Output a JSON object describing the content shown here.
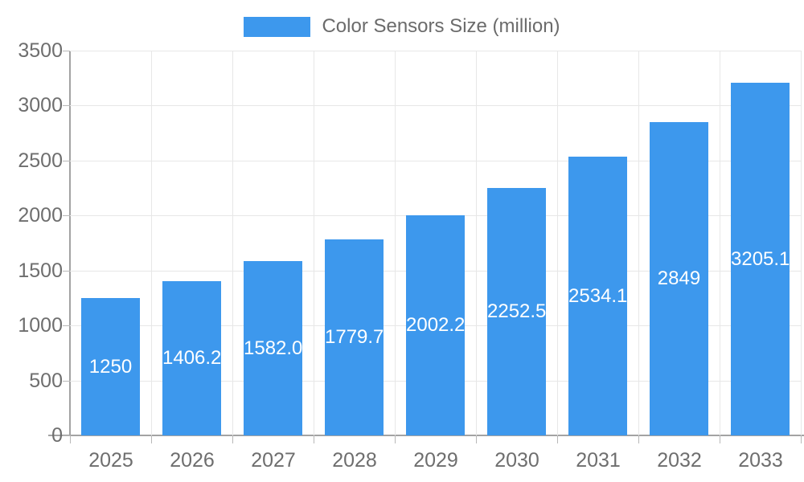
{
  "legend": {
    "label": "Color Sensors Size (million)",
    "swatch_color": "#3d98ed"
  },
  "chart_data": {
    "type": "bar",
    "title": "Color Sensors Size (million)",
    "categories": [
      "2025",
      "2026",
      "2027",
      "2028",
      "2029",
      "2030",
      "2031",
      "2032",
      "2033"
    ],
    "values": [
      1250,
      1406.25,
      1582.03,
      1779.78,
      2002.26,
      2252.54,
      2534.11,
      2849,
      3205.13
    ],
    "value_labels": [
      "1250",
      "1406.25",
      "1582.03",
      "1779.78",
      "2002.26",
      "2252.54",
      "2534.11",
      "2849",
      "3205.13"
    ],
    "xlabel": "",
    "ylabel": "",
    "ylim": [
      0,
      3500
    ],
    "yticks": [
      0,
      500,
      1000,
      1500,
      2000,
      2500,
      3000,
      3500
    ],
    "ytick_labels": [
      "0",
      "500",
      "1000",
      "1500",
      "2000",
      "2500",
      "3000",
      "3500"
    ],
    "grid": true,
    "legend_position": "top",
    "colors": {
      "bar": "#3d98ed",
      "grid": "#e7e7e7",
      "axis": "#a3a3a3",
      "tick": "#b8b8b8",
      "tick_text": "#6e6e6e",
      "legend_text": "#6b6b6b",
      "value_text": "#ffffff"
    }
  }
}
